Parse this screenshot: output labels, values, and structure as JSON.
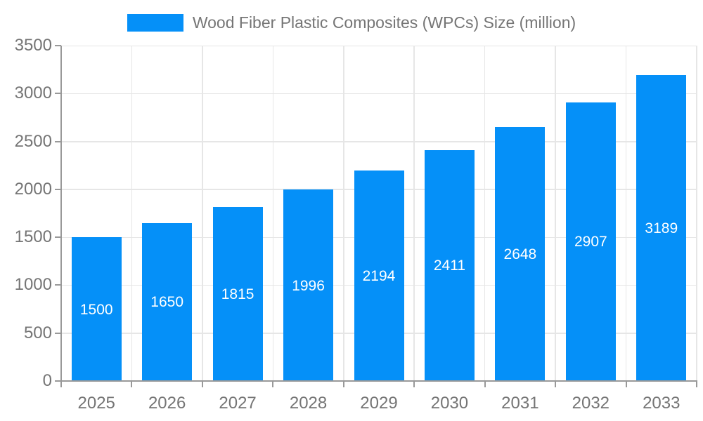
{
  "chart_data": {
    "type": "bar",
    "title": "Wood Fiber Plastic Composites (WPCs) Size (million)",
    "categories": [
      "2025",
      "2026",
      "2027",
      "2028",
      "2029",
      "2030",
      "2031",
      "2032",
      "2033"
    ],
    "values": [
      1500,
      1650,
      1815,
      1996,
      2194,
      2411,
      2648,
      2907,
      3189
    ],
    "xlabel": "",
    "ylabel": "",
    "ylim": [
      0,
      3500
    ],
    "ytick_step": 500,
    "ytick_labels": [
      "0",
      "500",
      "1000",
      "1500",
      "2000",
      "2500",
      "3000",
      "3500"
    ],
    "grid": "on",
    "legend_position": "top-center",
    "value_labels": "inside-center",
    "colors": {
      "bar": "#0590f8",
      "axis": "#999999",
      "grid": "#e6e6e6",
      "tick_text": "#757575",
      "title_text": "#757575",
      "value_text": "#ffffff"
    }
  }
}
